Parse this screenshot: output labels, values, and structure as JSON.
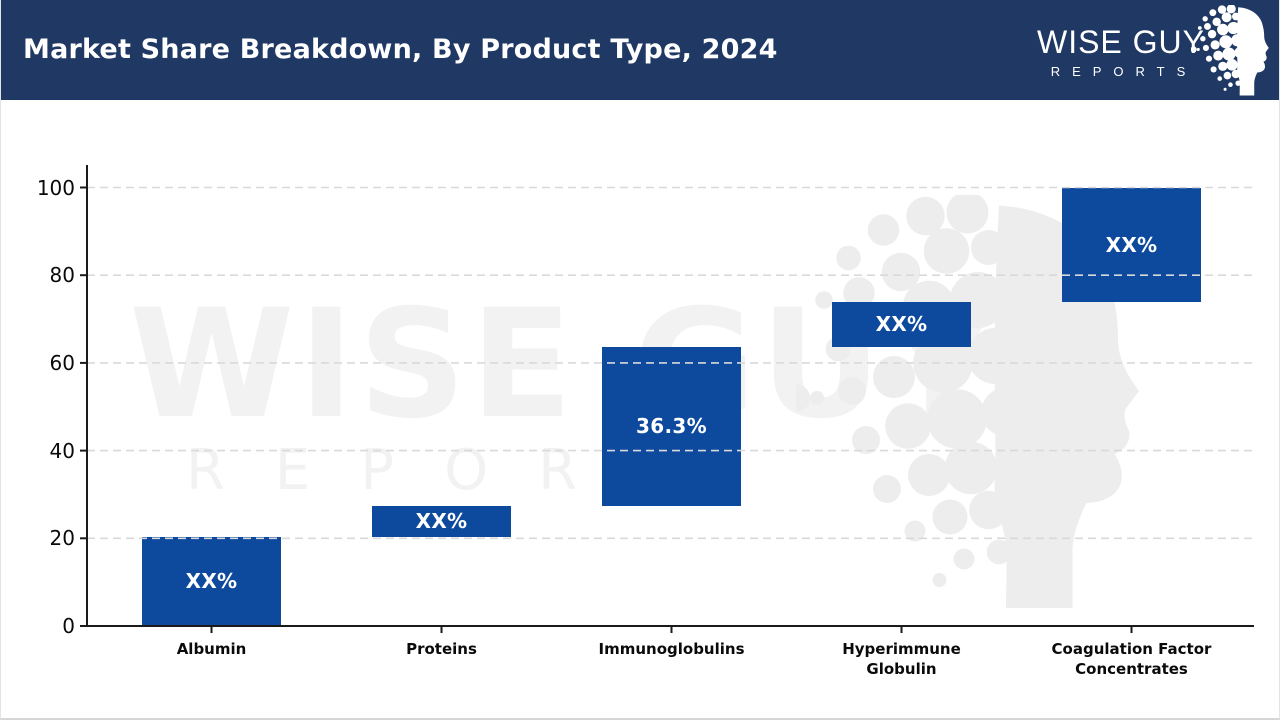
{
  "header": {
    "title": "Market Share Breakdown, By Product Type, 2024",
    "logo": {
      "line1": "WISE GUY",
      "line2": "REPORTS"
    }
  },
  "watermark": {
    "line1": "WISE GUY",
    "line2": "REPORTS"
  },
  "colors": {
    "header_bg": "#1f3864",
    "bar": "#0d4a9e",
    "bar_label_text": "#ffffff",
    "grid": "#d9d9d9",
    "axis": "#1a1a1a",
    "watermark": "#f2f2f2"
  },
  "chart_data": {
    "type": "bar",
    "subtype": "floating-segment-waterfall",
    "title": "Market Share Breakdown, By Product Type, 2024",
    "categories": [
      "Albumin",
      "Proteins",
      "Immunoglobulins",
      "Hyperimmune Globulin",
      "Coagulation Factor Concentrates"
    ],
    "category_lines": [
      [
        "Albumin"
      ],
      [
        "Proteins"
      ],
      [
        "Immunoglobulins"
      ],
      [
        "Hyperimmune",
        "Globulin"
      ],
      [
        "Coagulation Factor",
        "Concentrates"
      ]
    ],
    "series": [
      {
        "name": "Market share (%)",
        "ranges": [
          [
            0,
            20.4
          ],
          [
            20.4,
            27.3
          ],
          [
            27.4,
            63.7
          ],
          [
            63.7,
            73.9
          ],
          [
            73.9,
            100
          ]
        ],
        "labels": [
          "XX%",
          "XX%",
          "36.3%",
          "XX%",
          "XX%"
        ]
      }
    ],
    "ylim": [
      0,
      100
    ],
    "yticks": [
      0,
      20,
      40,
      60,
      80,
      100
    ],
    "xlabel": "",
    "ylabel": "",
    "grid": "horizontal-dashed",
    "legend": "none"
  }
}
